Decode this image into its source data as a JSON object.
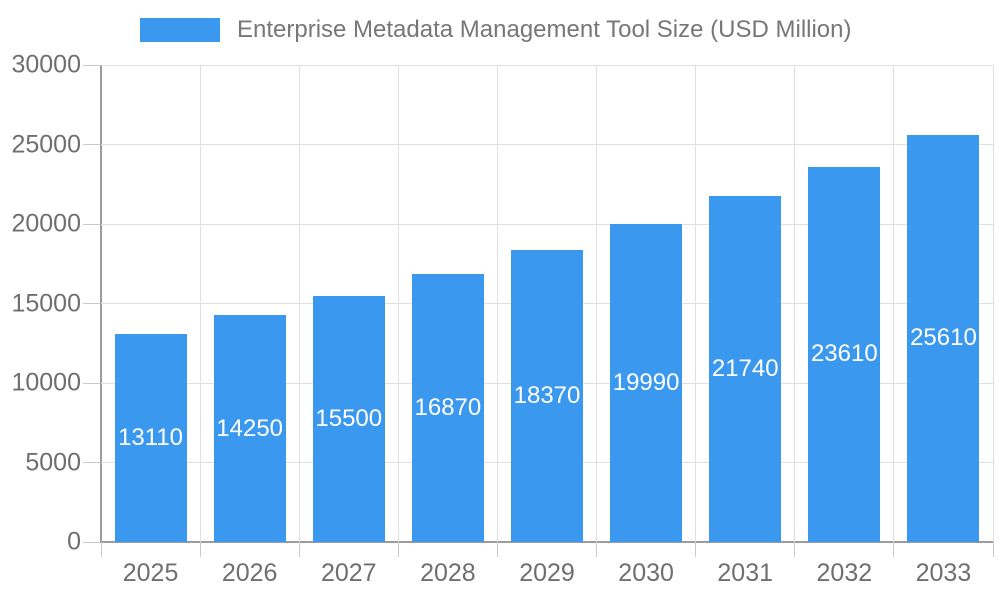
{
  "chart_data": {
    "type": "bar",
    "title": "Enterprise Metadata Management Tool Size (USD Million)",
    "categories": [
      "2025",
      "2026",
      "2027",
      "2028",
      "2029",
      "2030",
      "2031",
      "2032",
      "2033"
    ],
    "values": [
      13110,
      14250,
      15500,
      16870,
      18370,
      19990,
      21740,
      23610,
      25610
    ],
    "xlabel": "",
    "ylabel": "",
    "ylim": [
      0,
      30000
    ],
    "yticks": [
      0,
      5000,
      10000,
      15000,
      20000,
      25000,
      30000
    ],
    "grid": "both",
    "legend_position": "top-left",
    "colors": {
      "bar": "#3B98EF",
      "bar_label": "#FFFFFF",
      "gridline": "#E0E0E0",
      "tick": "#C9C9C9",
      "axis_line": "#9C9C9C",
      "axis_label": "#6E6F71",
      "legend_text": "#757779",
      "background": "#FFFFFF"
    }
  },
  "legend": {
    "label": "Enterprise Metadata Management Tool Size (USD Million)"
  }
}
